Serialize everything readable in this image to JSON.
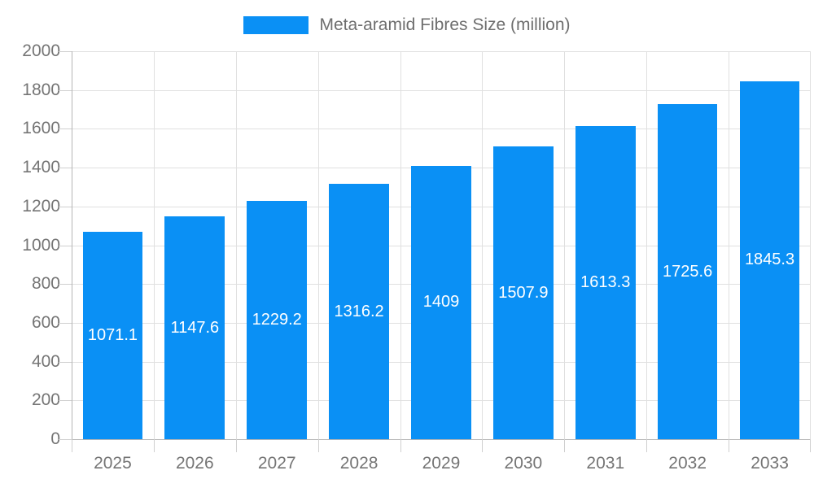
{
  "legend": {
    "label": "Meta-aramid Fibres Size (million)"
  },
  "colors": {
    "bar": "#0a90f5",
    "grid": "#e0e0e0",
    "axis": "#b5b5b5",
    "tick": "#cfcfcf",
    "axis_label": "#757575",
    "legend_text": "#6e6e6e",
    "value_label": "#ffffff",
    "background": "#ffffff"
  },
  "chart_data": {
    "type": "bar",
    "title": "Meta-aramid Fibres Size (million)",
    "categories": [
      "2025",
      "2026",
      "2027",
      "2028",
      "2029",
      "2030",
      "2031",
      "2032",
      "2033"
    ],
    "values": [
      1071.1,
      1147.6,
      1229.2,
      1316.2,
      1409,
      1507.9,
      1613.3,
      1725.6,
      1845.3
    ],
    "series_name": "Meta-aramid Fibres Size (million)",
    "xlabel": "",
    "ylabel": "",
    "ylim": [
      0,
      2000
    ],
    "y_ticks": [
      0,
      200,
      400,
      600,
      800,
      1000,
      1200,
      1400,
      1600,
      1800,
      2000
    ],
    "grid": true,
    "legend_position": "top",
    "value_labels_position": "center-inside"
  }
}
